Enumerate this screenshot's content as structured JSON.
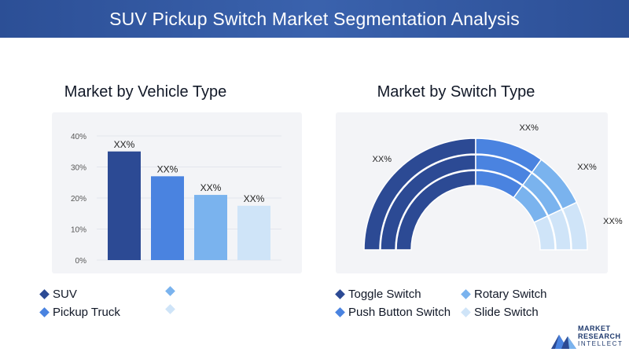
{
  "header": {
    "title": "SUV Pickup Switch Market Segmentation Analysis"
  },
  "left_panel": {
    "title": "Market by Vehicle Type",
    "legend": [
      {
        "label": "SUV",
        "color": "#2c4a94"
      },
      {
        "label": "",
        "color": "#7ab3ee"
      },
      {
        "label": "Pickup Truck",
        "color": "#4a83e0"
      },
      {
        "label": "",
        "color": "#cfe4f8"
      }
    ]
  },
  "right_panel": {
    "title": "Market by Switch Type",
    "legend": [
      {
        "label": "Toggle Switch",
        "color": "#2c4a94"
      },
      {
        "label": "Rotary Switch",
        "color": "#7ab3ee"
      },
      {
        "label": "Push Button Switch",
        "color": "#4a83e0"
      },
      {
        "label": "Slide Switch",
        "color": "#cfe4f8"
      }
    ]
  },
  "logo": {
    "line1": "MARKET",
    "line2": "RESEARCH",
    "line3": "INTELLECT"
  },
  "chart_data": [
    {
      "type": "bar",
      "title": "Market by Vehicle Type",
      "categories": [
        "SUV",
        "",
        "Pickup Truck",
        ""
      ],
      "values": [
        35,
        27,
        21,
        17.5
      ],
      "data_labels": [
        "XX%",
        "XX%",
        "XX%",
        "XX%"
      ],
      "colors": [
        "#2c4a94",
        "#4a83e0",
        "#7ab3ee",
        "#cfe4f8"
      ],
      "ylim": [
        0,
        40
      ],
      "yticks": [
        "0%",
        "10%",
        "20%",
        "30%",
        "40%"
      ],
      "grid": true
    },
    {
      "type": "pie",
      "title": "Market by Switch Type",
      "labels": [
        "Toggle Switch",
        "Push Button Switch",
        "Rotary Switch",
        "Slide Switch"
      ],
      "values": [
        50,
        20,
        16,
        14
      ],
      "data_labels": [
        "XX%",
        "XX%",
        "XX%",
        "XX%"
      ],
      "colors": [
        "#2c4a94",
        "#4a83e0",
        "#7ab3ee",
        "#cfe4f8"
      ]
    }
  ]
}
